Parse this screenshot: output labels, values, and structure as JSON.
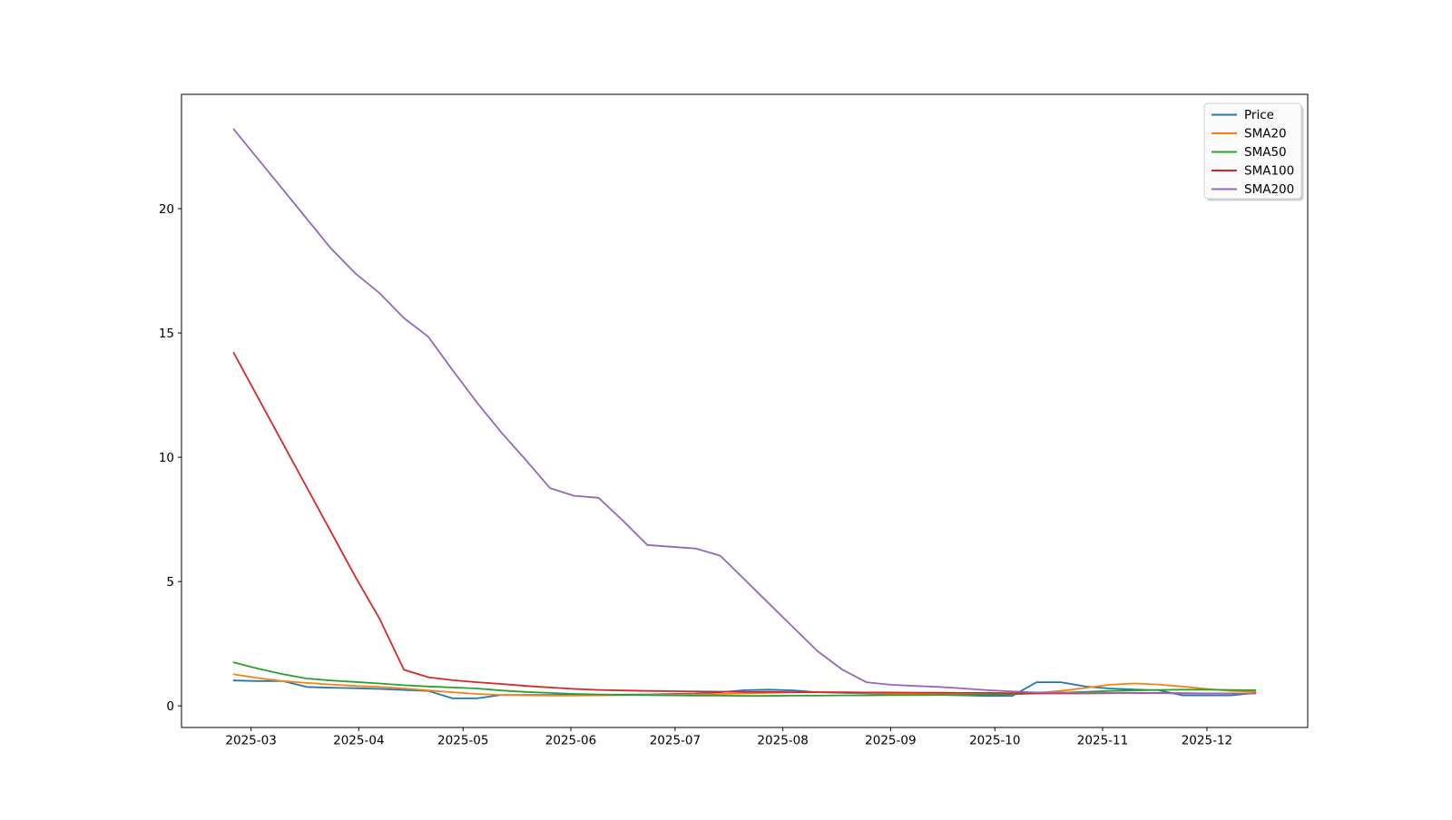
{
  "chart_data": {
    "type": "line",
    "title": "",
    "xlabel": "",
    "ylabel": "",
    "grid": false,
    "x_dates": [
      "2025-02-24",
      "2025-03-03",
      "2025-03-10",
      "2025-03-17",
      "2025-03-24",
      "2025-03-31",
      "2025-04-07",
      "2025-04-14",
      "2025-04-21",
      "2025-04-28",
      "2025-05-05",
      "2025-05-12",
      "2025-05-19",
      "2025-05-26",
      "2025-06-02",
      "2025-06-09",
      "2025-06-16",
      "2025-06-23",
      "2025-06-30",
      "2025-07-07",
      "2025-07-14",
      "2025-07-21",
      "2025-07-28",
      "2025-08-04",
      "2025-08-11",
      "2025-08-18",
      "2025-08-25",
      "2025-09-01",
      "2025-09-08",
      "2025-09-15",
      "2025-09-22",
      "2025-09-29",
      "2025-10-06",
      "2025-10-13",
      "2025-10-20",
      "2025-10-27",
      "2025-11-03",
      "2025-11-10",
      "2025-11-17",
      "2025-11-24",
      "2025-12-01",
      "2025-12-08",
      "2025-12-15"
    ],
    "series": [
      {
        "name": "Price",
        "color": "#1f77b4",
        "values": [
          1.02,
          1.0,
          1.0,
          0.76,
          0.73,
          0.71,
          0.68,
          0.64,
          0.6,
          0.3,
          0.3,
          0.44,
          0.44,
          0.44,
          0.45,
          0.45,
          0.45,
          0.46,
          0.48,
          0.5,
          0.55,
          0.63,
          0.65,
          0.62,
          0.55,
          0.52,
          0.5,
          0.48,
          0.46,
          0.44,
          0.42,
          0.4,
          0.4,
          0.95,
          0.95,
          0.78,
          0.7,
          0.66,
          0.63,
          0.42,
          0.42,
          0.42,
          0.52
        ]
      },
      {
        "name": "SMA20",
        "color": "#ff7f0e",
        "values": [
          1.27,
          1.12,
          1.0,
          0.92,
          0.86,
          0.8,
          0.76,
          0.7,
          0.62,
          0.55,
          0.48,
          0.44,
          0.42,
          0.41,
          0.41,
          0.42,
          0.43,
          0.44,
          0.45,
          0.46,
          0.48,
          0.5,
          0.52,
          0.54,
          0.55,
          0.54,
          0.52,
          0.5,
          0.48,
          0.47,
          0.46,
          0.46,
          0.48,
          0.52,
          0.6,
          0.72,
          0.85,
          0.9,
          0.86,
          0.78,
          0.68,
          0.6,
          0.57
        ]
      },
      {
        "name": "SMA50",
        "color": "#2ca02c",
        "values": [
          1.75,
          1.5,
          1.28,
          1.1,
          1.02,
          0.96,
          0.9,
          0.83,
          0.78,
          0.74,
          0.7,
          0.62,
          0.56,
          0.52,
          0.48,
          0.46,
          0.44,
          0.43,
          0.42,
          0.41,
          0.41,
          0.4,
          0.4,
          0.41,
          0.41,
          0.42,
          0.42,
          0.43,
          0.43,
          0.44,
          0.44,
          0.45,
          0.47,
          0.5,
          0.53,
          0.56,
          0.6,
          0.62,
          0.64,
          0.65,
          0.65,
          0.64,
          0.63
        ]
      },
      {
        "name": "SMA100",
        "color": "#d62728",
        "values": [
          14.2,
          12.4,
          10.6,
          8.8,
          7.0,
          5.2,
          3.5,
          1.45,
          1.15,
          1.03,
          0.95,
          0.88,
          0.8,
          0.74,
          0.68,
          0.64,
          0.62,
          0.6,
          0.59,
          0.58,
          0.57,
          0.56,
          0.56,
          0.55,
          0.55,
          0.55,
          0.54,
          0.54,
          0.53,
          0.53,
          0.52,
          0.52,
          0.51,
          0.5,
          0.5,
          0.5,
          0.51,
          0.52,
          0.52,
          0.51,
          0.5,
          0.5,
          0.5
        ]
      },
      {
        "name": "SMA200",
        "color": "#9467bd",
        "values": [
          23.2,
          22.0,
          20.8,
          19.6,
          18.4,
          17.4,
          16.6,
          15.6,
          14.85,
          13.5,
          12.2,
          11.0,
          9.9,
          8.76,
          8.45,
          8.37,
          7.45,
          6.47,
          6.4,
          6.33,
          6.04,
          5.08,
          4.12,
          3.16,
          2.2,
          1.47,
          0.95,
          0.85,
          0.8,
          0.76,
          0.7,
          0.63,
          0.58,
          0.54,
          0.53,
          0.52,
          0.52,
          0.51,
          0.51,
          0.5,
          0.5,
          0.5,
          0.5
        ]
      }
    ],
    "x_ticks": [
      {
        "date": "2025-03-01",
        "label": "2025-03"
      },
      {
        "date": "2025-04-01",
        "label": "2025-04"
      },
      {
        "date": "2025-05-01",
        "label": "2025-05"
      },
      {
        "date": "2025-06-01",
        "label": "2025-06"
      },
      {
        "date": "2025-07-01",
        "label": "2025-07"
      },
      {
        "date": "2025-08-01",
        "label": "2025-08"
      },
      {
        "date": "2025-09-01",
        "label": "2025-09"
      },
      {
        "date": "2025-10-01",
        "label": "2025-10"
      },
      {
        "date": "2025-11-01",
        "label": "2025-11"
      },
      {
        "date": "2025-12-01",
        "label": "2025-12"
      }
    ],
    "y_ticks": [
      {
        "value": 0,
        "label": "0"
      },
      {
        "value": 5,
        "label": "5"
      },
      {
        "value": 10,
        "label": "10"
      },
      {
        "value": 15,
        "label": "15"
      },
      {
        "value": 20,
        "label": "20"
      }
    ],
    "xlim": [
      "2025-02-09",
      "2025-12-30"
    ],
    "ylim": [
      -0.87,
      24.6
    ],
    "legend": {
      "position": "upper right",
      "labels": [
        "Price",
        "SMA20",
        "SMA50",
        "SMA100",
        "SMA200"
      ]
    },
    "colors": {
      "background": "#ffffff",
      "spine": "#000000",
      "legend_border": "#cccccc",
      "legend_background": "#ffffff",
      "legend_shadow": "#999999"
    }
  }
}
